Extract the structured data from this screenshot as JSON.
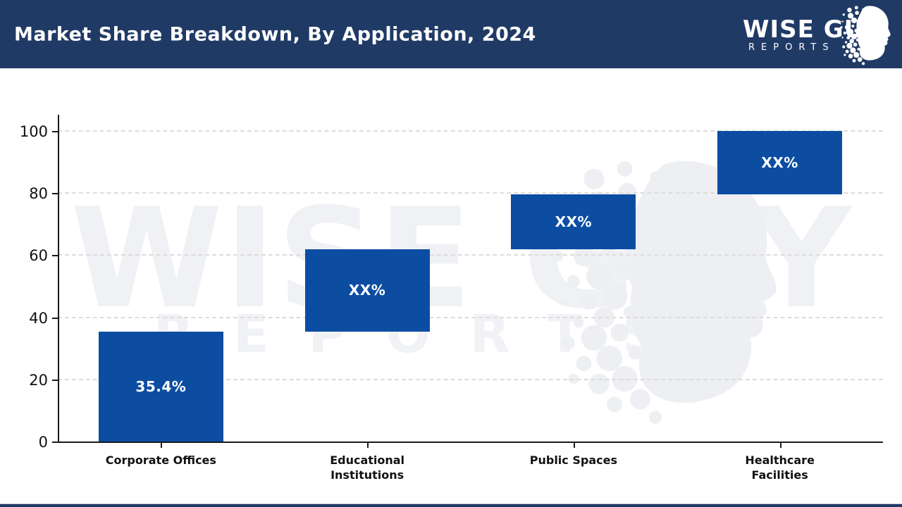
{
  "header": {
    "title": "Market Share Breakdown, By Application, 2024",
    "logo": {
      "brand": "WISE GUY",
      "brand_sub": "REPORTS"
    }
  },
  "watermark": {
    "line1": "WISE GUY",
    "line2": "REPORTS"
  },
  "colors": {
    "header_bg": "#203A66",
    "bar": "#0C4DA2",
    "bar_label": "#ffffff",
    "gridline": "#DCDCDC",
    "axis": "#1a1a1a",
    "watermark": "#F0F1F4"
  },
  "chart_data": {
    "type": "bar",
    "subtype": "waterfall-floating-bars",
    "title": "Market Share Breakdown, By Application, 2024",
    "xlabel": "",
    "ylabel": "",
    "ylim": [
      0,
      100
    ],
    "yticks": [
      0,
      20,
      40,
      60,
      80,
      100
    ],
    "grid": "horizontal-dashed",
    "legend": "none",
    "categories": [
      "Corporate Offices",
      "Educational\nInstitutions",
      "Public Spaces",
      "Healthcare\nFacilities"
    ],
    "segments": [
      {
        "category": "Corporate Offices",
        "start": 0,
        "end": 35.4,
        "label": "35.4%"
      },
      {
        "category": "Educational Institutions",
        "start": 35.4,
        "end": 62,
        "label": "XX%"
      },
      {
        "category": "Public Spaces",
        "start": 62,
        "end": 79.5,
        "label": "XX%"
      },
      {
        "category": "Healthcare Facilities",
        "start": 79.5,
        "end": 100,
        "label": "XX%"
      }
    ]
  }
}
